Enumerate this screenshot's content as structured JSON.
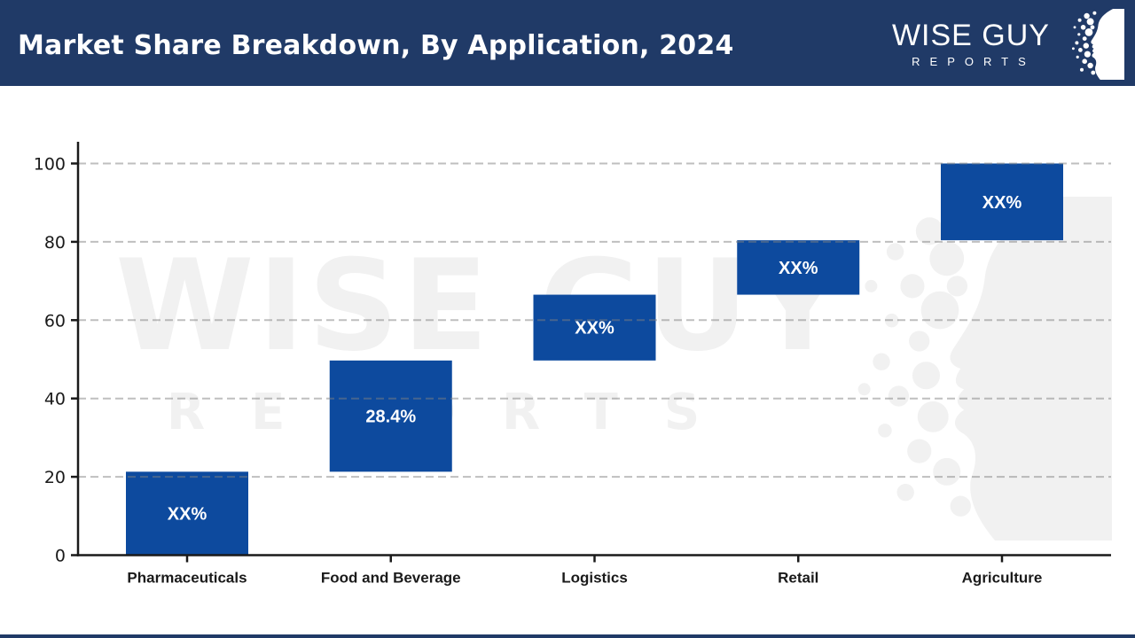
{
  "header": {
    "title": "Market Share Breakdown, By Application, 2024",
    "logo": {
      "line1": "WISE GUY",
      "line2": "REPORTS"
    }
  },
  "watermark": {
    "line1": "WISE GUY",
    "line2": "REPORTS"
  },
  "colors": {
    "header_bg": "#203A67",
    "footer_bg": "#203A67",
    "bar": "#0D4A9E",
    "bar_label": "#FFFFFF",
    "axis": "#1A1A1A",
    "tick_label": "#1A1A1A",
    "grid": "#808080",
    "watermark": "#F1F1F1",
    "title_text": "#FFFFFF"
  },
  "chart_data": {
    "type": "bar",
    "subtype": "waterfall",
    "title": "Market Share Breakdown, By Application, 2024",
    "categories": [
      "Pharmaceuticals",
      "Food and Beverage",
      "Logistics",
      "Retail",
      "Agriculture"
    ],
    "segments": [
      {
        "category": "Pharmaceuticals",
        "start": 0,
        "end": 21.3,
        "increment": 21.3,
        "label": "XX%"
      },
      {
        "category": "Food and Beverage",
        "start": 21.3,
        "end": 49.7,
        "increment": 28.4,
        "label": "28.4%"
      },
      {
        "category": "Logistics",
        "start": 49.7,
        "end": 66.5,
        "increment": 16.8,
        "label": "XX%"
      },
      {
        "category": "Retail",
        "start": 66.5,
        "end": 80.4,
        "increment": 13.9,
        "label": "XX%"
      },
      {
        "category": "Agriculture",
        "start": 80.4,
        "end": 100,
        "increment": 19.6,
        "label": "XX%"
      }
    ],
    "yticks": [
      0,
      20,
      40,
      60,
      80,
      100
    ],
    "ylim": [
      0,
      105
    ],
    "xlabel": "",
    "ylabel": "",
    "grid": "horizontal-dashed",
    "legend": "none"
  }
}
